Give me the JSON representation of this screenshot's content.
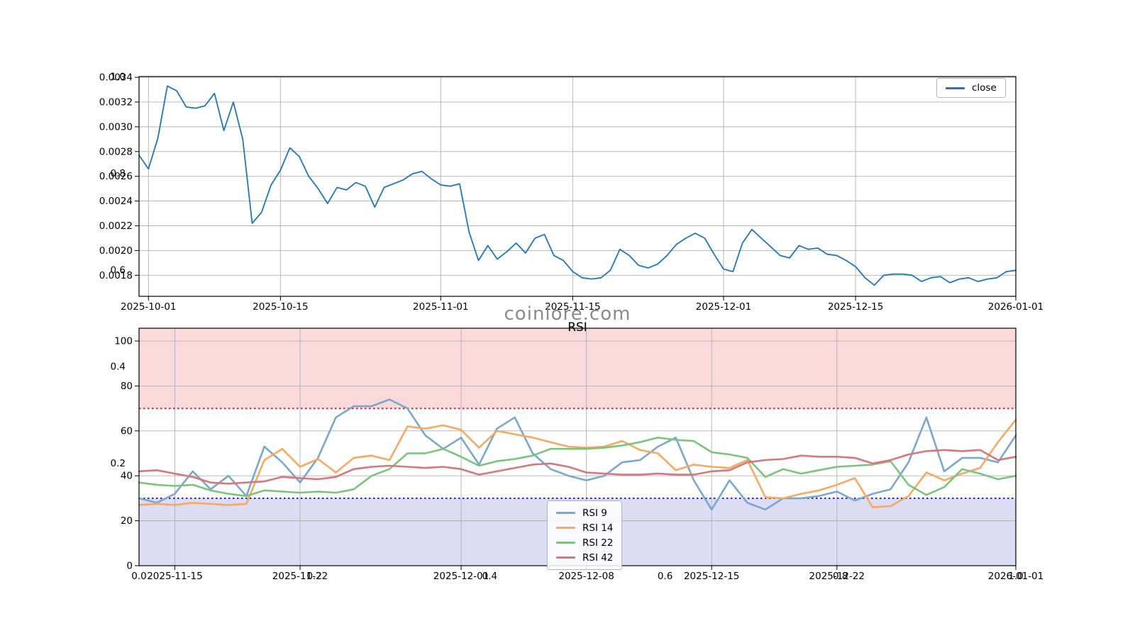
{
  "watermark": "coinlore.com",
  "colors": {
    "close": "#1f77b4",
    "rsi9": "#7ba7cb",
    "rsi14": "#f5a962",
    "rsi22": "#7cc47d",
    "rsi42": "#d4787e",
    "overbought_line": "#d62739",
    "oversold_line": "#2121ad",
    "overbought_band": "#fbd9da",
    "oversold_band": "#dcdcf5",
    "grid": "#b0b0b0",
    "watermark_color": "#8a8a8a"
  },
  "overlay_axis": {
    "x_labels": [
      "0.0",
      "0.2",
      "0.4",
      "0.6",
      "0.8",
      "1.0"
    ],
    "y_labels": [
      "1.0",
      "0.8",
      "0.6",
      "0.4",
      "0.2"
    ]
  },
  "chart_data": [
    {
      "type": "line",
      "title": "",
      "grid": true,
      "legend_position": "upper right",
      "ylim": [
        0.00163,
        0.003406
      ],
      "yticks": [
        0.0018,
        0.002,
        0.0022,
        0.0024,
        0.0026,
        0.0028,
        0.003,
        0.0032,
        0.0034
      ],
      "ytick_labels": [
        "0.0018",
        "0.0020",
        "0.0022",
        "0.0024",
        "0.0026",
        "0.0028",
        "0.0030",
        "0.0032",
        "0.0034"
      ],
      "xticks": [
        {
          "label": "2025-10-01",
          "i": 1
        },
        {
          "label": "2025-10-15",
          "i": 15
        },
        {
          "label": "2025-11-01",
          "i": 32
        },
        {
          "label": "2025-11-15",
          "i": 46
        },
        {
          "label": "2025-12-01",
          "i": 62
        },
        {
          "label": "2025-12-15",
          "i": 76
        },
        {
          "label": "2026-01-01",
          "i": 93
        }
      ],
      "x_dates": [
        "2025-09-30",
        "2025-10-01",
        "2025-10-02",
        "2025-10-03",
        "2025-10-04",
        "2025-10-05",
        "2025-10-06",
        "2025-10-07",
        "2025-10-08",
        "2025-10-09",
        "2025-10-10",
        "2025-10-11",
        "2025-10-12",
        "2025-10-13",
        "2025-10-14",
        "2025-10-15",
        "2025-10-16",
        "2025-10-17",
        "2025-10-18",
        "2025-10-19",
        "2025-10-20",
        "2025-10-21",
        "2025-10-22",
        "2025-10-23",
        "2025-10-24",
        "2025-10-25",
        "2025-10-26",
        "2025-10-27",
        "2025-10-28",
        "2025-10-29",
        "2025-10-30",
        "2025-10-31",
        "2025-11-01",
        "2025-11-02",
        "2025-11-03",
        "2025-11-04",
        "2025-11-05",
        "2025-11-06",
        "2025-11-07",
        "2025-11-08",
        "2025-11-09",
        "2025-11-10",
        "2025-11-11",
        "2025-11-12",
        "2025-11-13",
        "2025-11-14",
        "2025-11-15",
        "2025-11-16",
        "2025-11-17",
        "2025-11-18",
        "2025-11-19",
        "2025-11-20",
        "2025-11-21",
        "2025-11-22",
        "2025-11-23",
        "2025-11-24",
        "2025-11-25",
        "2025-11-26",
        "2025-11-27",
        "2025-11-28",
        "2025-11-29",
        "2025-11-30",
        "2025-12-01",
        "2025-12-02",
        "2025-12-03",
        "2025-12-04",
        "2025-12-05",
        "2025-12-06",
        "2025-12-07",
        "2025-12-08",
        "2025-12-09",
        "2025-12-10",
        "2025-12-11",
        "2025-12-12",
        "2025-12-13",
        "2025-12-14",
        "2025-12-15",
        "2025-12-16",
        "2025-12-17",
        "2025-12-18",
        "2025-12-19",
        "2025-12-20",
        "2025-12-21",
        "2025-12-22",
        "2025-12-23",
        "2025-12-24",
        "2025-12-25",
        "2025-12-26",
        "2025-12-27",
        "2025-12-28",
        "2025-12-29",
        "2025-12-30",
        "2025-12-31",
        "2026-01-01"
      ],
      "series": [
        {
          "name": "close",
          "color": "close",
          "values": [
            0.00277,
            0.00266,
            0.00291,
            0.00333,
            0.00329,
            0.00316,
            0.00315,
            0.00317,
            0.00327,
            0.00297,
            0.0032,
            0.0029,
            0.00222,
            0.00231,
            0.00253,
            0.00265,
            0.00283,
            0.00276,
            0.0026,
            0.0025,
            0.00238,
            0.00251,
            0.00249,
            0.00255,
            0.00252,
            0.00235,
            0.00251,
            0.00254,
            0.00257,
            0.00262,
            0.00264,
            0.00258,
            0.00253,
            0.00252,
            0.00254,
            0.00215,
            0.00192,
            0.00204,
            0.00193,
            0.00199,
            0.00206,
            0.00198,
            0.0021,
            0.00213,
            0.00196,
            0.00192,
            0.00183,
            0.00178,
            0.00177,
            0.00178,
            0.00184,
            0.00201,
            0.00196,
            0.00188,
            0.00186,
            0.00189,
            0.00196,
            0.00205,
            0.0021,
            0.00214,
            0.0021,
            0.00197,
            0.00185,
            0.00183,
            0.00206,
            0.00217,
            0.0021,
            0.00203,
            0.00196,
            0.00194,
            0.00204,
            0.00201,
            0.00202,
            0.00197,
            0.00196,
            0.00192,
            0.00187,
            0.00178,
            0.00172,
            0.0018,
            0.00181,
            0.00181,
            0.0018,
            0.00175,
            0.00178,
            0.00179,
            0.00174,
            0.00177,
            0.00178,
            0.00175,
            0.00177,
            0.00178,
            0.00183,
            0.00184
          ]
        }
      ]
    },
    {
      "type": "line",
      "title": "RSI",
      "grid": true,
      "legend_position": "lower center",
      "ylim": [
        0,
        105.7
      ],
      "yticks": [
        0,
        20,
        40,
        60,
        80,
        100
      ],
      "ytick_labels": [
        "0",
        "20",
        "40",
        "60",
        "80",
        "100"
      ],
      "overbought_level": 70,
      "oversold_level": 30,
      "bands": [
        {
          "name": "overbought-band",
          "from": 70,
          "to": 105.7,
          "color": "overbought_band"
        },
        {
          "name": "oversold-band",
          "from": 0,
          "to": 30,
          "color": "oversold_band"
        }
      ],
      "levels": [
        {
          "name": "overbought-threshold-line",
          "value": 70,
          "color": "overbought_line"
        },
        {
          "name": "oversold-threshold-line",
          "value": 30,
          "color": "oversold_line"
        }
      ],
      "xticks": [
        {
          "label": "2025-11-15",
          "i": 2
        },
        {
          "label": "2025-11-22",
          "i": 9
        },
        {
          "label": "2025-12-01",
          "i": 18
        },
        {
          "label": "2025-12-08",
          "i": 25
        },
        {
          "label": "2025-12-15",
          "i": 32
        },
        {
          "label": "2025-12-22",
          "i": 39
        },
        {
          "label": "2026-01-01",
          "i": 49
        }
      ],
      "x_dates": [
        "2025-11-13",
        "2025-11-14",
        "2025-11-15",
        "2025-11-16",
        "2025-11-17",
        "2025-11-18",
        "2025-11-19",
        "2025-11-20",
        "2025-11-21",
        "2025-11-22",
        "2025-11-23",
        "2025-11-24",
        "2025-11-25",
        "2025-11-26",
        "2025-11-27",
        "2025-11-28",
        "2025-11-29",
        "2025-11-30",
        "2025-12-01",
        "2025-12-02",
        "2025-12-03",
        "2025-12-04",
        "2025-12-05",
        "2025-12-06",
        "2025-12-07",
        "2025-12-08",
        "2025-12-09",
        "2025-12-10",
        "2025-12-11",
        "2025-12-12",
        "2025-12-13",
        "2025-12-14",
        "2025-12-15",
        "2025-12-16",
        "2025-12-17",
        "2025-12-18",
        "2025-12-19",
        "2025-12-20",
        "2025-12-21",
        "2025-12-22",
        "2025-12-23",
        "2025-12-24",
        "2025-12-25",
        "2025-12-26",
        "2025-12-27",
        "2025-12-28",
        "2025-12-29",
        "2025-12-30",
        "2025-12-31",
        "2026-01-01"
      ],
      "series": [
        {
          "name": "RSI 9",
          "color": "rsi9",
          "values": [
            30,
            28,
            32,
            42,
            34,
            40,
            31,
            53,
            46,
            37,
            48,
            66,
            71,
            71,
            74,
            70,
            58,
            52,
            57,
            45,
            61,
            66,
            50,
            43,
            40,
            38,
            40,
            46,
            47,
            53,
            57,
            38,
            25,
            38,
            28,
            25,
            30,
            30,
            31,
            33,
            29,
            32,
            34,
            46,
            66,
            42,
            48,
            48,
            46,
            58
          ]
        },
        {
          "name": "RSI 14",
          "color": "rsi14",
          "values": [
            27,
            27.5,
            27,
            28,
            27.5,
            27,
            27.5,
            47,
            52,
            44,
            47.5,
            41.5,
            48,
            49,
            47,
            62,
            61,
            62.5,
            60.5,
            52.5,
            60,
            58.5,
            57,
            55,
            53,
            52.5,
            53,
            55.5,
            51.5,
            50,
            42.5,
            45,
            44,
            43.5,
            47,
            30.5,
            30,
            32,
            33.5,
            36,
            39,
            26,
            26.5,
            31,
            41.5,
            38,
            41,
            43.5,
            55,
            65
          ]
        },
        {
          "name": "RSI 22",
          "color": "rsi22",
          "values": [
            37,
            36,
            35.5,
            36,
            33.5,
            32,
            31,
            33.5,
            33,
            32.5,
            33,
            32.5,
            34,
            40,
            43,
            50,
            50,
            52,
            48.5,
            44.5,
            46.5,
            47.5,
            49,
            52,
            52,
            52,
            52.5,
            53.5,
            55,
            57,
            56,
            55.5,
            50.5,
            49.5,
            48,
            39.5,
            43,
            41,
            42.5,
            44,
            44.5,
            45,
            46.5,
            36,
            31.5,
            35,
            43,
            41,
            38.5,
            40
          ]
        },
        {
          "name": "RSI 42",
          "color": "rsi42",
          "values": [
            42,
            42.5,
            41,
            39.5,
            37,
            36.5,
            37,
            37.5,
            39.5,
            39,
            38.5,
            39.5,
            43,
            44,
            44.5,
            44,
            43.5,
            44,
            43,
            40.5,
            42,
            43.5,
            45,
            45.5,
            44,
            41.5,
            41,
            40.5,
            40.5,
            41,
            40.5,
            40.5,
            42,
            42.5,
            46,
            47,
            47.5,
            49,
            48.5,
            48.5,
            48,
            45.5,
            47,
            49.5,
            51,
            51.5,
            51,
            51.5,
            47,
            48.5
          ]
        }
      ]
    }
  ]
}
